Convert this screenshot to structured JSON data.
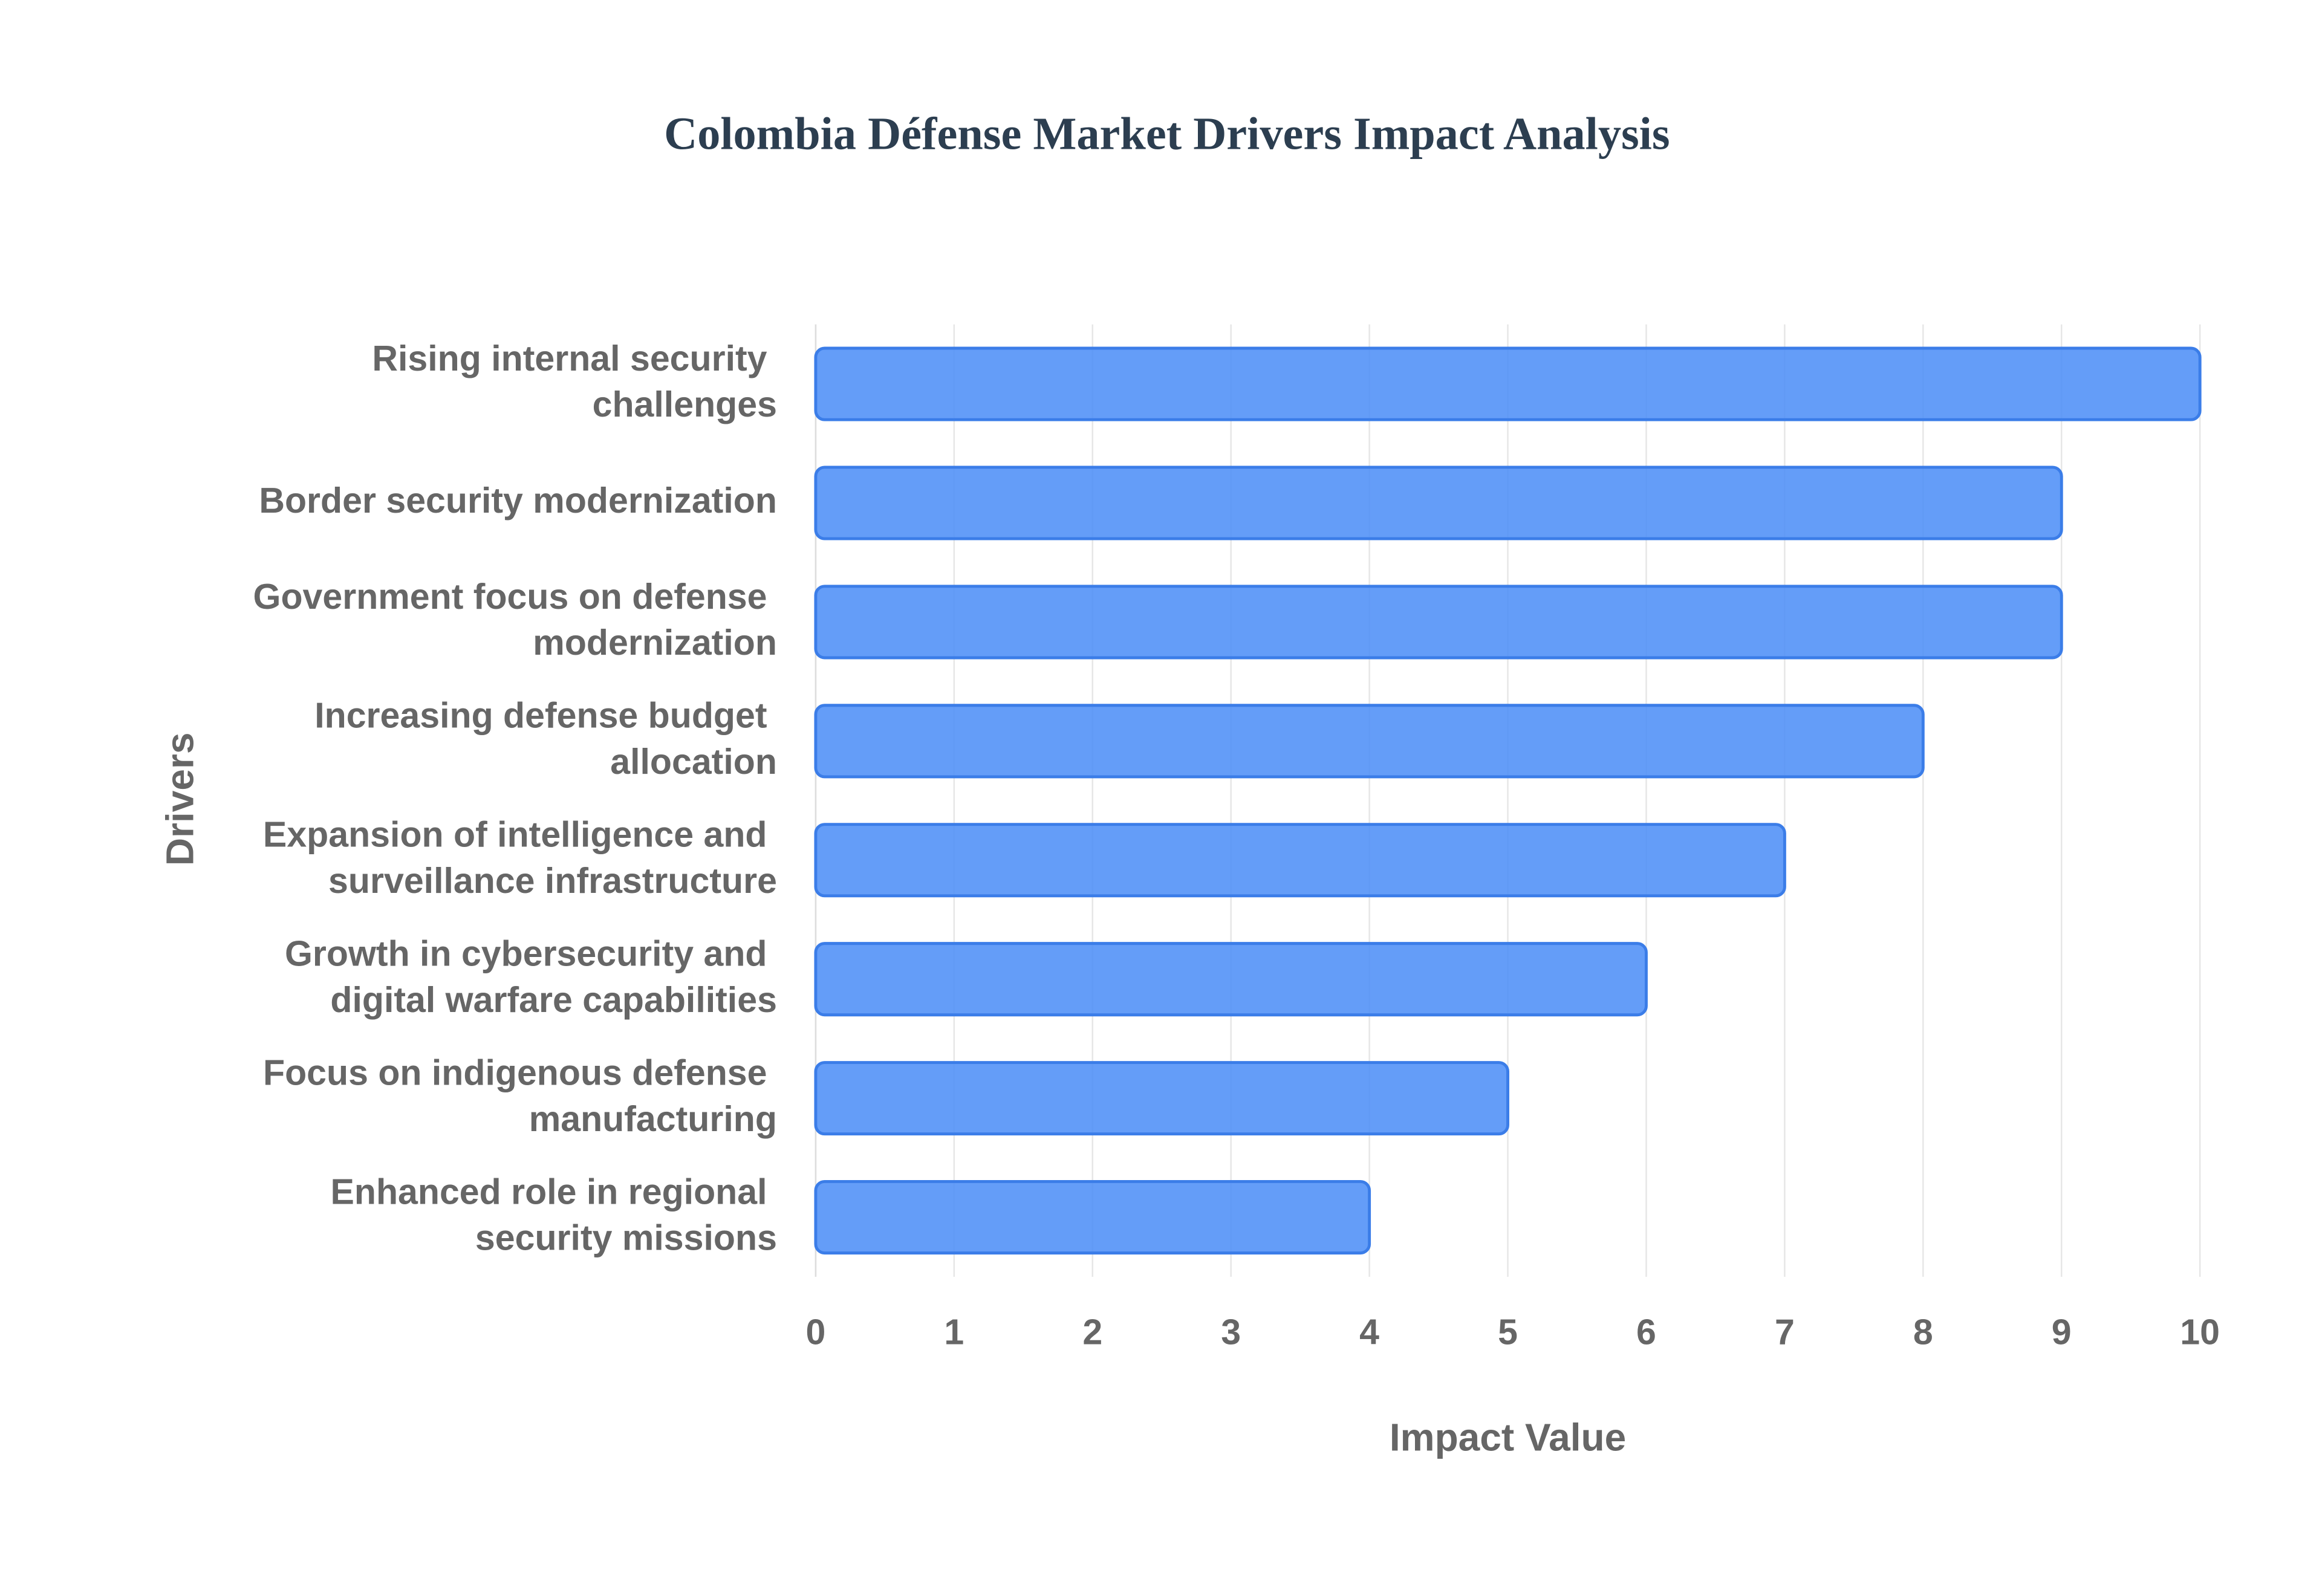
{
  "chart_data": {
    "type": "bar",
    "orientation": "horizontal",
    "title": "Colombia Défense Market Drivers Impact Analysis",
    "x_label": "Impact Value",
    "y_label": "Drivers",
    "categories": [
      "Rising internal security challenges",
      "Border security modernization",
      "Government focus on defense modernization",
      "Increasing defense budget allocation",
      "Expansion of intelligence and surveillance infrastructure",
      "Growth in cybersecurity and digital warfare capabilities",
      "Focus on indigenous defense manufacturing",
      "Enhanced role in regional security missions"
    ],
    "values": [
      10,
      9,
      9,
      8,
      7,
      6,
      5,
      4
    ],
    "color": "#4f8ff7",
    "xlim": [
      0,
      10
    ],
    "xticks": [
      0,
      1,
      2,
      3,
      4,
      5,
      6,
      7,
      8,
      9,
      10
    ],
    "grid": true
  }
}
